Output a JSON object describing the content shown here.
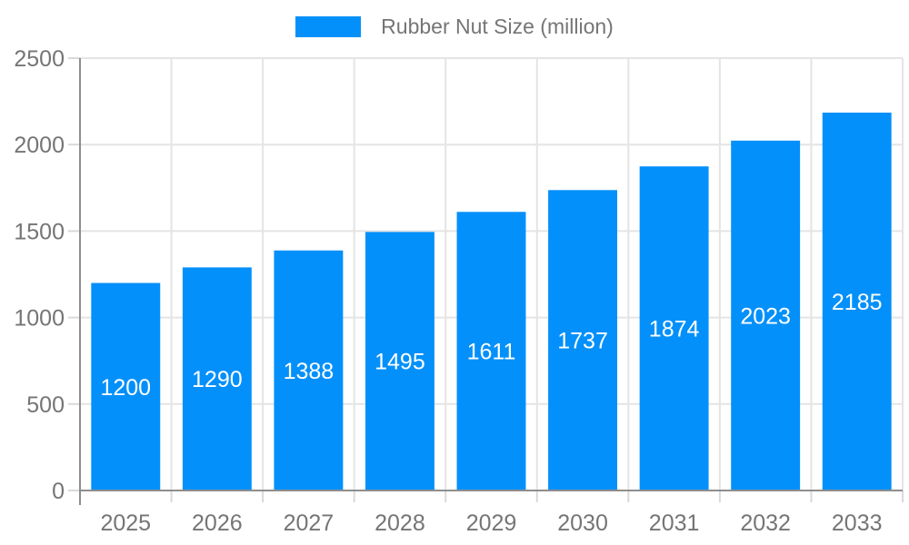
{
  "legend": {
    "label": "Rubber Nut Size (million)"
  },
  "chart_data": {
    "type": "bar",
    "title": "",
    "xlabel": "",
    "ylabel": "",
    "categories": [
      "2025",
      "2026",
      "2027",
      "2028",
      "2029",
      "2030",
      "2031",
      "2032",
      "2033"
    ],
    "series": [
      {
        "name": "Rubber Nut Size (million)",
        "values": [
          1200,
          1290,
          1388,
          1495,
          1611,
          1737,
          1874,
          2023,
          2185
        ]
      }
    ],
    "ylim": [
      0,
      2500
    ],
    "yticks": [
      0,
      500,
      1000,
      1500,
      2000,
      2500
    ],
    "grid": true,
    "legend_position": "top-center",
    "value_labels": "inside-center",
    "colors": {
      "bar": "#0490FA",
      "value_label": "#FFFFFF",
      "grid_line": "#E4E4E4",
      "tick_mark": "#D9D9D9",
      "axis_line": "#8E8E8E",
      "tick_label": "#757575",
      "legend_text": "#757575",
      "background": "#FFFFFF"
    }
  }
}
